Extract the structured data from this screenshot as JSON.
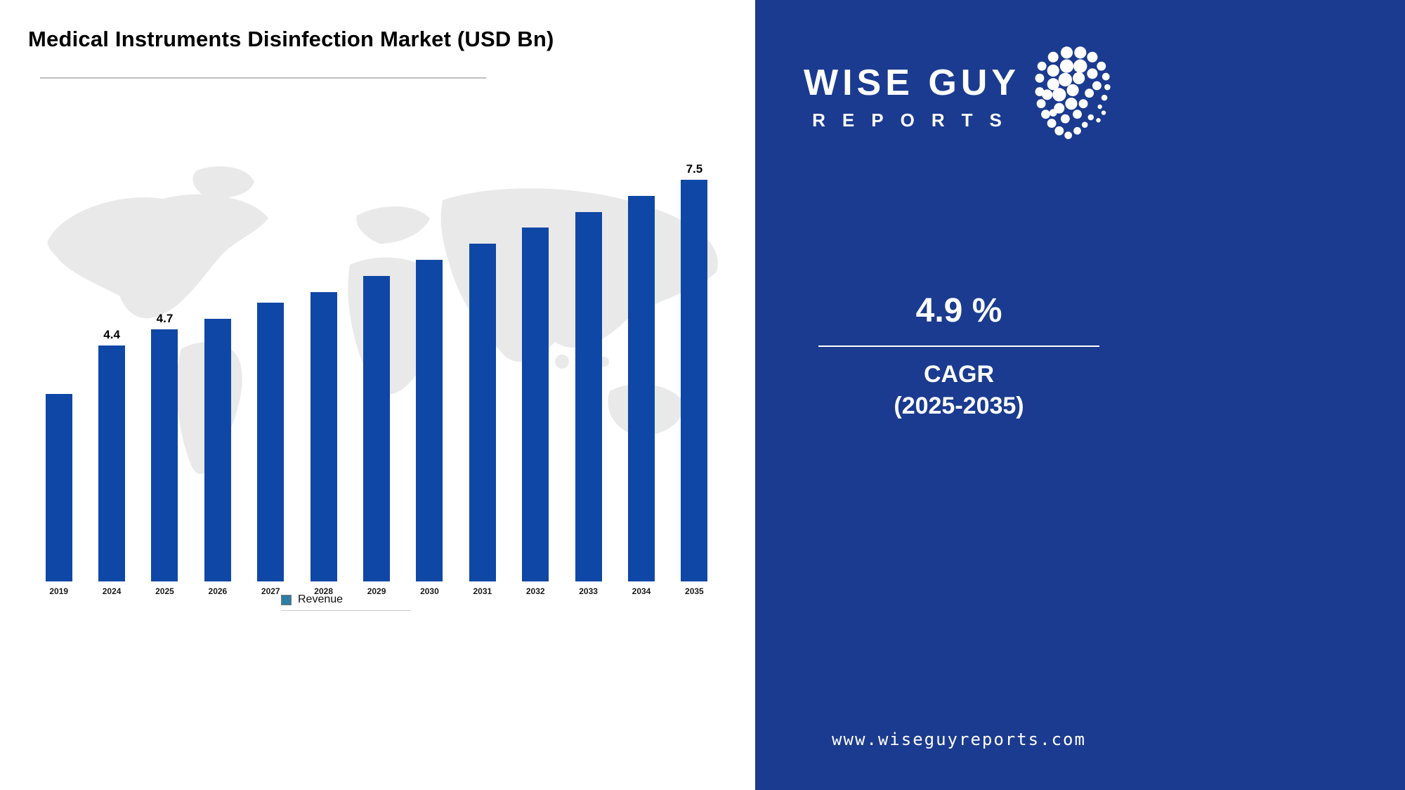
{
  "title": "Medical Instruments Disinfection Market (USD Bn)",
  "chart_data": {
    "type": "bar",
    "title": "Medical Instruments Disinfection Market (USD Bn)",
    "categories": [
      "2019",
      "2024",
      "2025",
      "2026",
      "2027",
      "2028",
      "2029",
      "2030",
      "2031",
      "2032",
      "2033",
      "2034",
      "2035"
    ],
    "values": [
      3.5,
      4.4,
      4.7,
      4.9,
      5.2,
      5.4,
      5.7,
      6.0,
      6.3,
      6.6,
      6.9,
      7.2,
      7.5
    ],
    "data_labels": [
      "",
      "4.4",
      "4.7",
      "",
      "",
      "",
      "",
      "",
      "",
      "",
      "",
      "",
      "7.5"
    ],
    "xlabel": "",
    "ylabel": "",
    "ylim": [
      0,
      7.9
    ],
    "grid": false,
    "bar_color": "#0f47a6",
    "legend": [
      "Revenue"
    ],
    "legend_position": "bottom",
    "legend_swatch_color": "#2e7da6"
  },
  "legend": {
    "label": "Revenue"
  },
  "sidebar": {
    "background": "#1a3b8f",
    "logo": {
      "line1": "WISE GUY",
      "line2": "REPORTS"
    },
    "cagr_value": "4.9 %",
    "cagr_label": "CAGR",
    "cagr_range": "(2025-2035)",
    "website": "www.wiseguyreports.com"
  }
}
